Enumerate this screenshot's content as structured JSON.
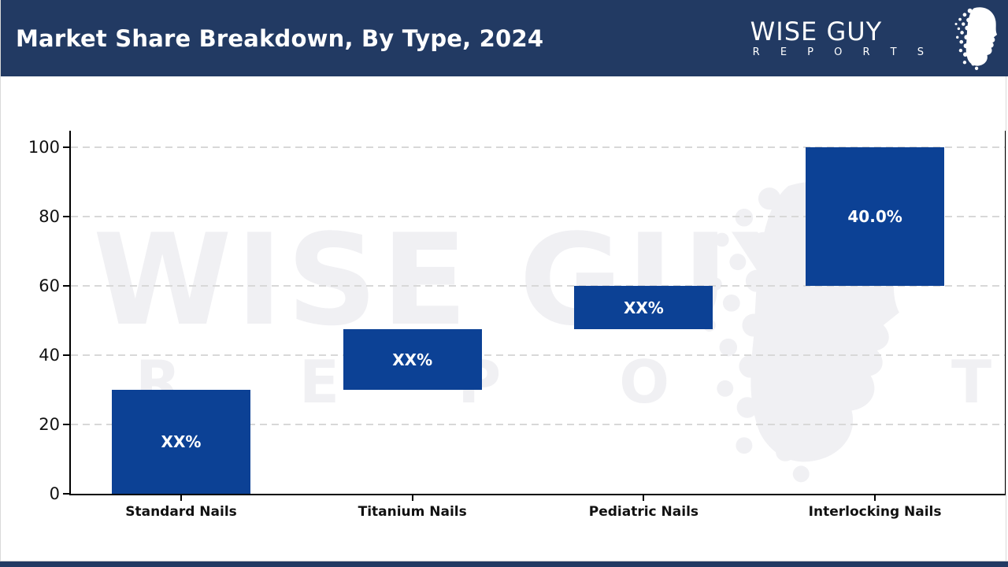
{
  "header": {
    "title": "Market Share Breakdown, By Type, 2024",
    "logo": {
      "line1": "WISE GUY",
      "line2": "R E P O R T S"
    }
  },
  "watermark": {
    "line1": "WISE GUY",
    "line2": "R E P O R T S"
  },
  "colors": {
    "header_bg": "#223a63",
    "footer_bg": "#223a63",
    "title_text": "#ffffff",
    "logo_text": "#ffffff",
    "bar_fill": "#0c4195",
    "bar_label": "#ffffff",
    "grid_line": "#d8d8d8",
    "axis": "#000000",
    "watermark": "#f0f0f3"
  },
  "chart_data": {
    "type": "bar",
    "variant": "floating-waterfall",
    "title": "Market Share Breakdown, By Type, 2024",
    "xlabel": "",
    "ylabel": "",
    "categories": [
      "Standard Nails",
      "Titanium Nails",
      "Pediatric Nails",
      "Interlocking Nails"
    ],
    "bars": [
      {
        "category": "Standard Nails",
        "start": 0,
        "end": 30,
        "label": "XX%"
      },
      {
        "category": "Titanium Nails",
        "start": 30,
        "end": 47.5,
        "label": "XX%"
      },
      {
        "category": "Pediatric Nails",
        "start": 47.5,
        "end": 60,
        "label": "XX%"
      },
      {
        "category": "Interlocking Nails",
        "start": 60,
        "end": 100,
        "label": "40.0%"
      }
    ],
    "yticks": [
      0,
      20,
      40,
      60,
      80,
      100
    ],
    "ylim": [
      0,
      104.8
    ],
    "grid": {
      "axis": "y",
      "style": "dashed",
      "on": true
    },
    "legend": "none",
    "bar_color": "#0c4195"
  }
}
